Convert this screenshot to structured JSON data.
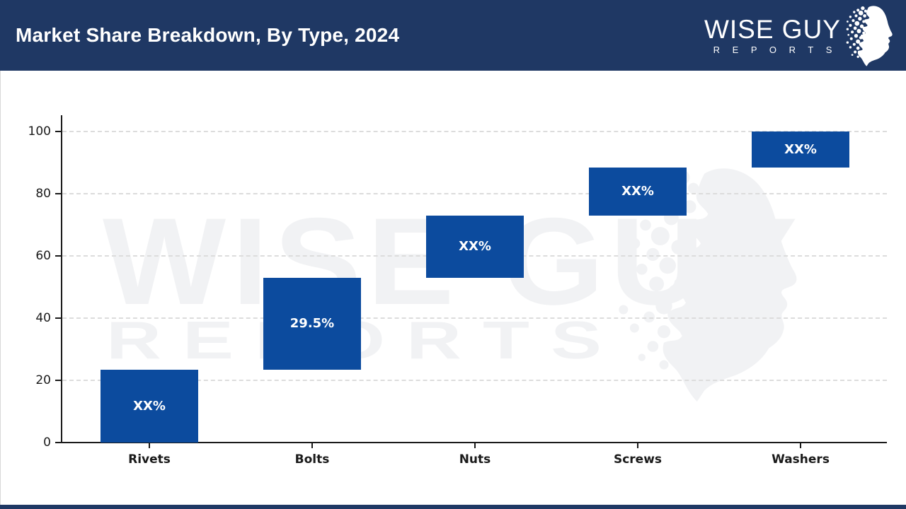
{
  "header": {
    "title": "Market Share Breakdown, By Type, 2024",
    "logo": {
      "line1": "WISE GUY",
      "line2": "R E P O R T S"
    }
  },
  "watermark": {
    "line1": "WISE GUY",
    "line2": "R E P O R T S"
  },
  "chart_data": {
    "type": "bar",
    "subtype": "waterfall-floating-segments",
    "title": "Market Share Breakdown, By Type, 2024",
    "categories": [
      "Rivets",
      "Bolts",
      "Nuts",
      "Screws",
      "Washers"
    ],
    "values": [
      23.5,
      29.5,
      20,
      15.5,
      11.5
    ],
    "segment_starts": [
      0,
      23.5,
      53,
      73,
      88.5
    ],
    "segment_ends": [
      23.5,
      53,
      73,
      88.5,
      100
    ],
    "bar_labels": [
      "XX%",
      "29.5%",
      "XX%",
      "XX%",
      "XX%"
    ],
    "xlabel": "",
    "ylabel": "",
    "ylim": [
      0,
      105
    ],
    "yticks": [
      "0",
      "20",
      "40",
      "60",
      "80",
      "100"
    ],
    "ytick_values": [
      0,
      20,
      40,
      60,
      80,
      100
    ],
    "grid": "horizontal-dashed",
    "legend": "none",
    "colors": {
      "bar": "#0c4b9e",
      "bar_label": "#ffffff",
      "header_bg": "#1f3864",
      "footer_bg": "#1f3864",
      "grid": "#dcdcdc",
      "axis": "#1a1a1a",
      "tick_text": "#1a1a1a",
      "watermark": "#f1f2f4"
    }
  }
}
